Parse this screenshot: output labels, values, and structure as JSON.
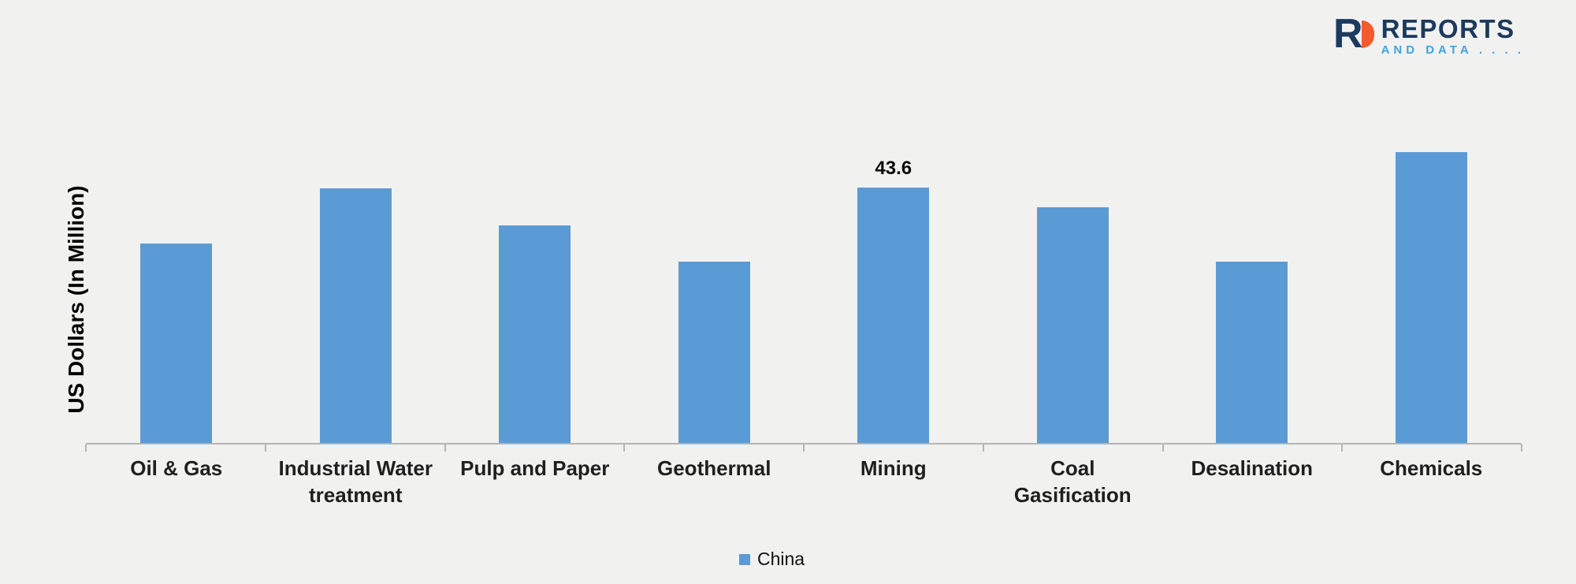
{
  "logo": {
    "mark_letter": "R",
    "reports": "REPORTS",
    "and_data": "AND DATA",
    "dots": " . . . .",
    "colors": {
      "navy": "#1b3a5c",
      "light_blue": "#41a3e0",
      "orange": "#f15b2d"
    }
  },
  "chart_data": {
    "type": "bar",
    "title": "",
    "xlabel": "",
    "ylabel": "US Dollars (In Million)",
    "categories": [
      "Oil & Gas",
      "Industrial Water treatment",
      "Pulp and Paper",
      "Geothermal",
      "Mining",
      "Coal Gasification",
      "Desalination",
      "Chemicals"
    ],
    "series": [
      {
        "name": "China",
        "color": "#5B9BD5",
        "values": [
          34.1,
          43.5,
          37.2,
          31.0,
          43.6,
          40.2,
          31.0,
          49.6
        ],
        "data_labels": [
          null,
          null,
          null,
          null,
          "43.6",
          null,
          null,
          null
        ]
      }
    ],
    "ylim": [
      0,
      55
    ],
    "y_tick_labels_visible": false,
    "grid": false,
    "legend_position": "bottom",
    "axis_color": "#b5b5b5",
    "background_color": "#f1f1f0"
  }
}
